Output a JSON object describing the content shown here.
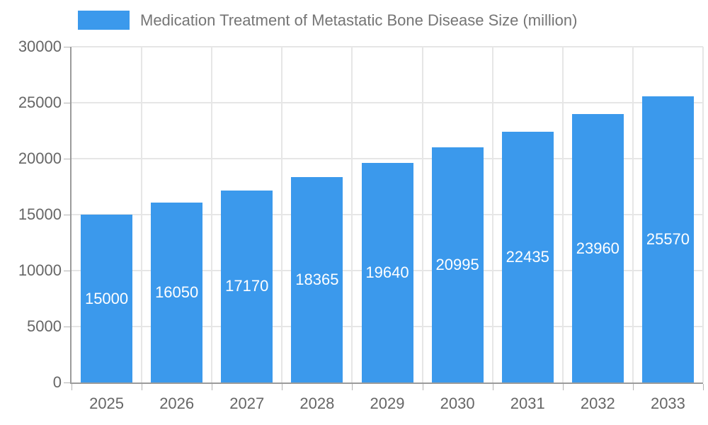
{
  "chart_data": {
    "type": "bar",
    "title": "Medication Treatment of Metastatic Bone Disease Size (million)",
    "categories": [
      "2025",
      "2026",
      "2027",
      "2028",
      "2029",
      "2030",
      "2031",
      "2032",
      "2033"
    ],
    "values": [
      15000,
      16050,
      17170,
      18365,
      19640,
      20995,
      22435,
      23960,
      25570
    ],
    "xlabel": "",
    "ylabel": "",
    "ylim": [
      0,
      30000
    ],
    "yticks": [
      0,
      5000,
      10000,
      15000,
      20000,
      25000,
      30000
    ],
    "grid": true,
    "legend_position": "top-left",
    "bar_color": "#3B99EC",
    "grid_color": "#E6E6E6",
    "axis_color": "#9B9B9B",
    "tick_mark_color": "#B3B3B3",
    "tick_label_color": "#666666",
    "title_color": "#757575",
    "value_label_color": "#FFFFFF",
    "background_color": "#FFFFFF"
  }
}
